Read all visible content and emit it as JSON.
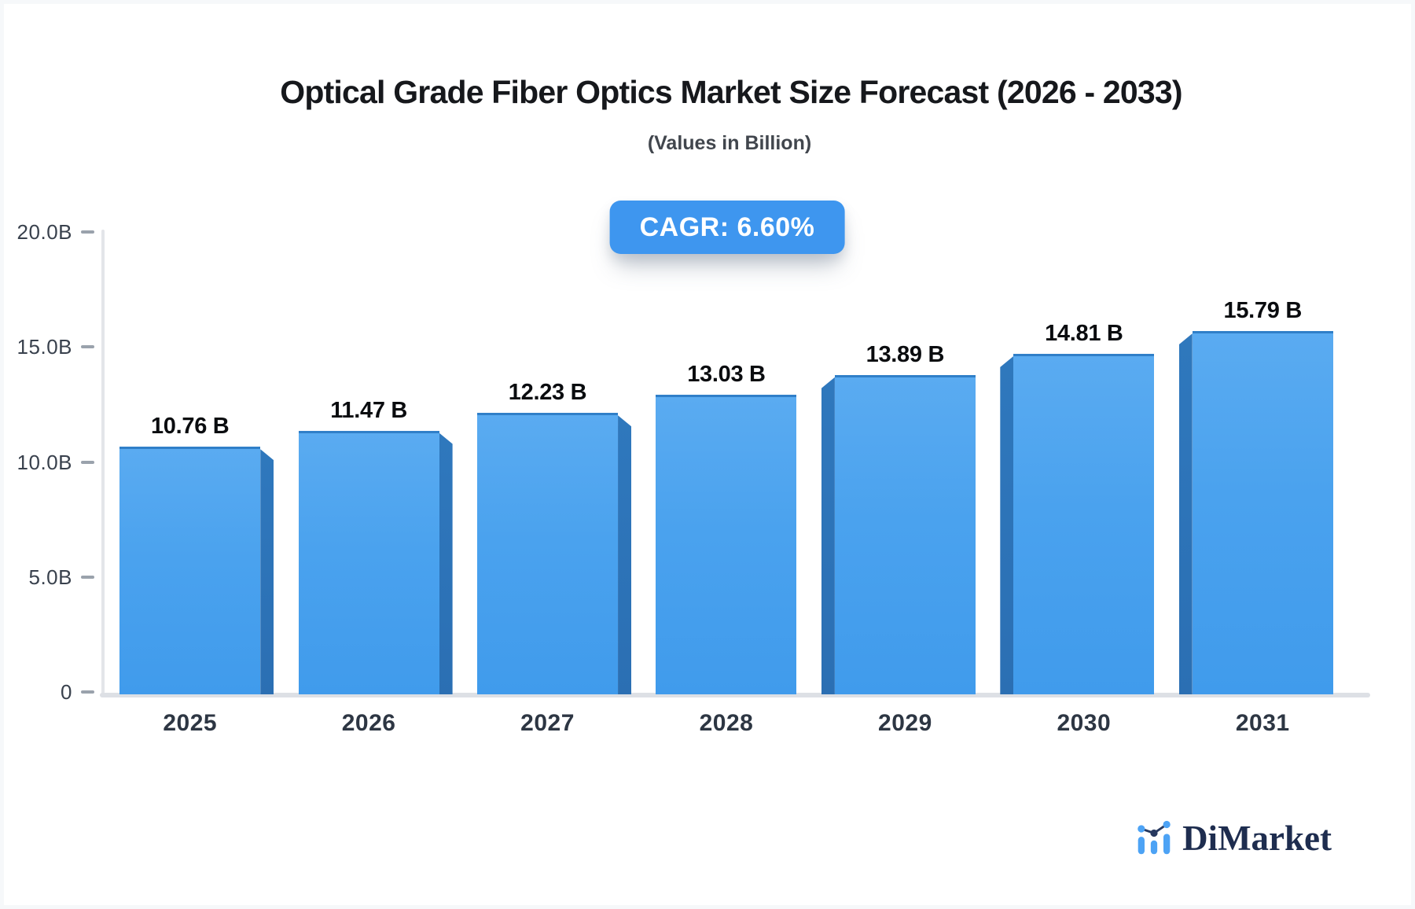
{
  "header": {
    "title": "Optical Grade Fiber Optics Market Size Forecast (2026 - 2033)",
    "subtitle": "(Values in Billion)"
  },
  "badge": {
    "label": "CAGR: 6.60%",
    "background": "#3e96ef",
    "text_color": "#ffffff"
  },
  "chart_data": {
    "type": "bar",
    "title": "Optical Grade Fiber Optics Market Size Forecast (2026 - 2033)",
    "subtitle": "(Values in Billion)",
    "categories": [
      "2025",
      "2026",
      "2027",
      "2028",
      "2029",
      "2030",
      "2031"
    ],
    "values": [
      10.76,
      11.47,
      12.23,
      13.03,
      13.89,
      14.81,
      15.79
    ],
    "value_labels": [
      "10.76 B",
      "11.47 B",
      "12.23 B",
      "13.03 B",
      "13.89 B",
      "14.81 B",
      "15.79 B"
    ],
    "xlabel": "",
    "ylabel": "",
    "ylim": [
      0,
      20
    ],
    "yticks": [
      {
        "label": "20.0B",
        "value": 20
      },
      {
        "label": "15.0B",
        "value": 15
      },
      {
        "label": "10.0B",
        "value": 10
      },
      {
        "label": "5.0B",
        "value": 5
      },
      {
        "label": "0",
        "value": 0
      }
    ],
    "grid": false,
    "legend": false,
    "style": "3d-extruded-bars-center-perspective",
    "bar_color": "#4aa2ee",
    "bar_side_color": "#2d73b5",
    "axis_color": "#e3e5e9"
  },
  "branding": {
    "logo_text": "DiMarket",
    "logo_icon": "bar-chart-trend-icon",
    "text_color": "#1e2d4f",
    "icon_bar_color": "#4da3f5",
    "icon_dot_color": "#27395f"
  }
}
